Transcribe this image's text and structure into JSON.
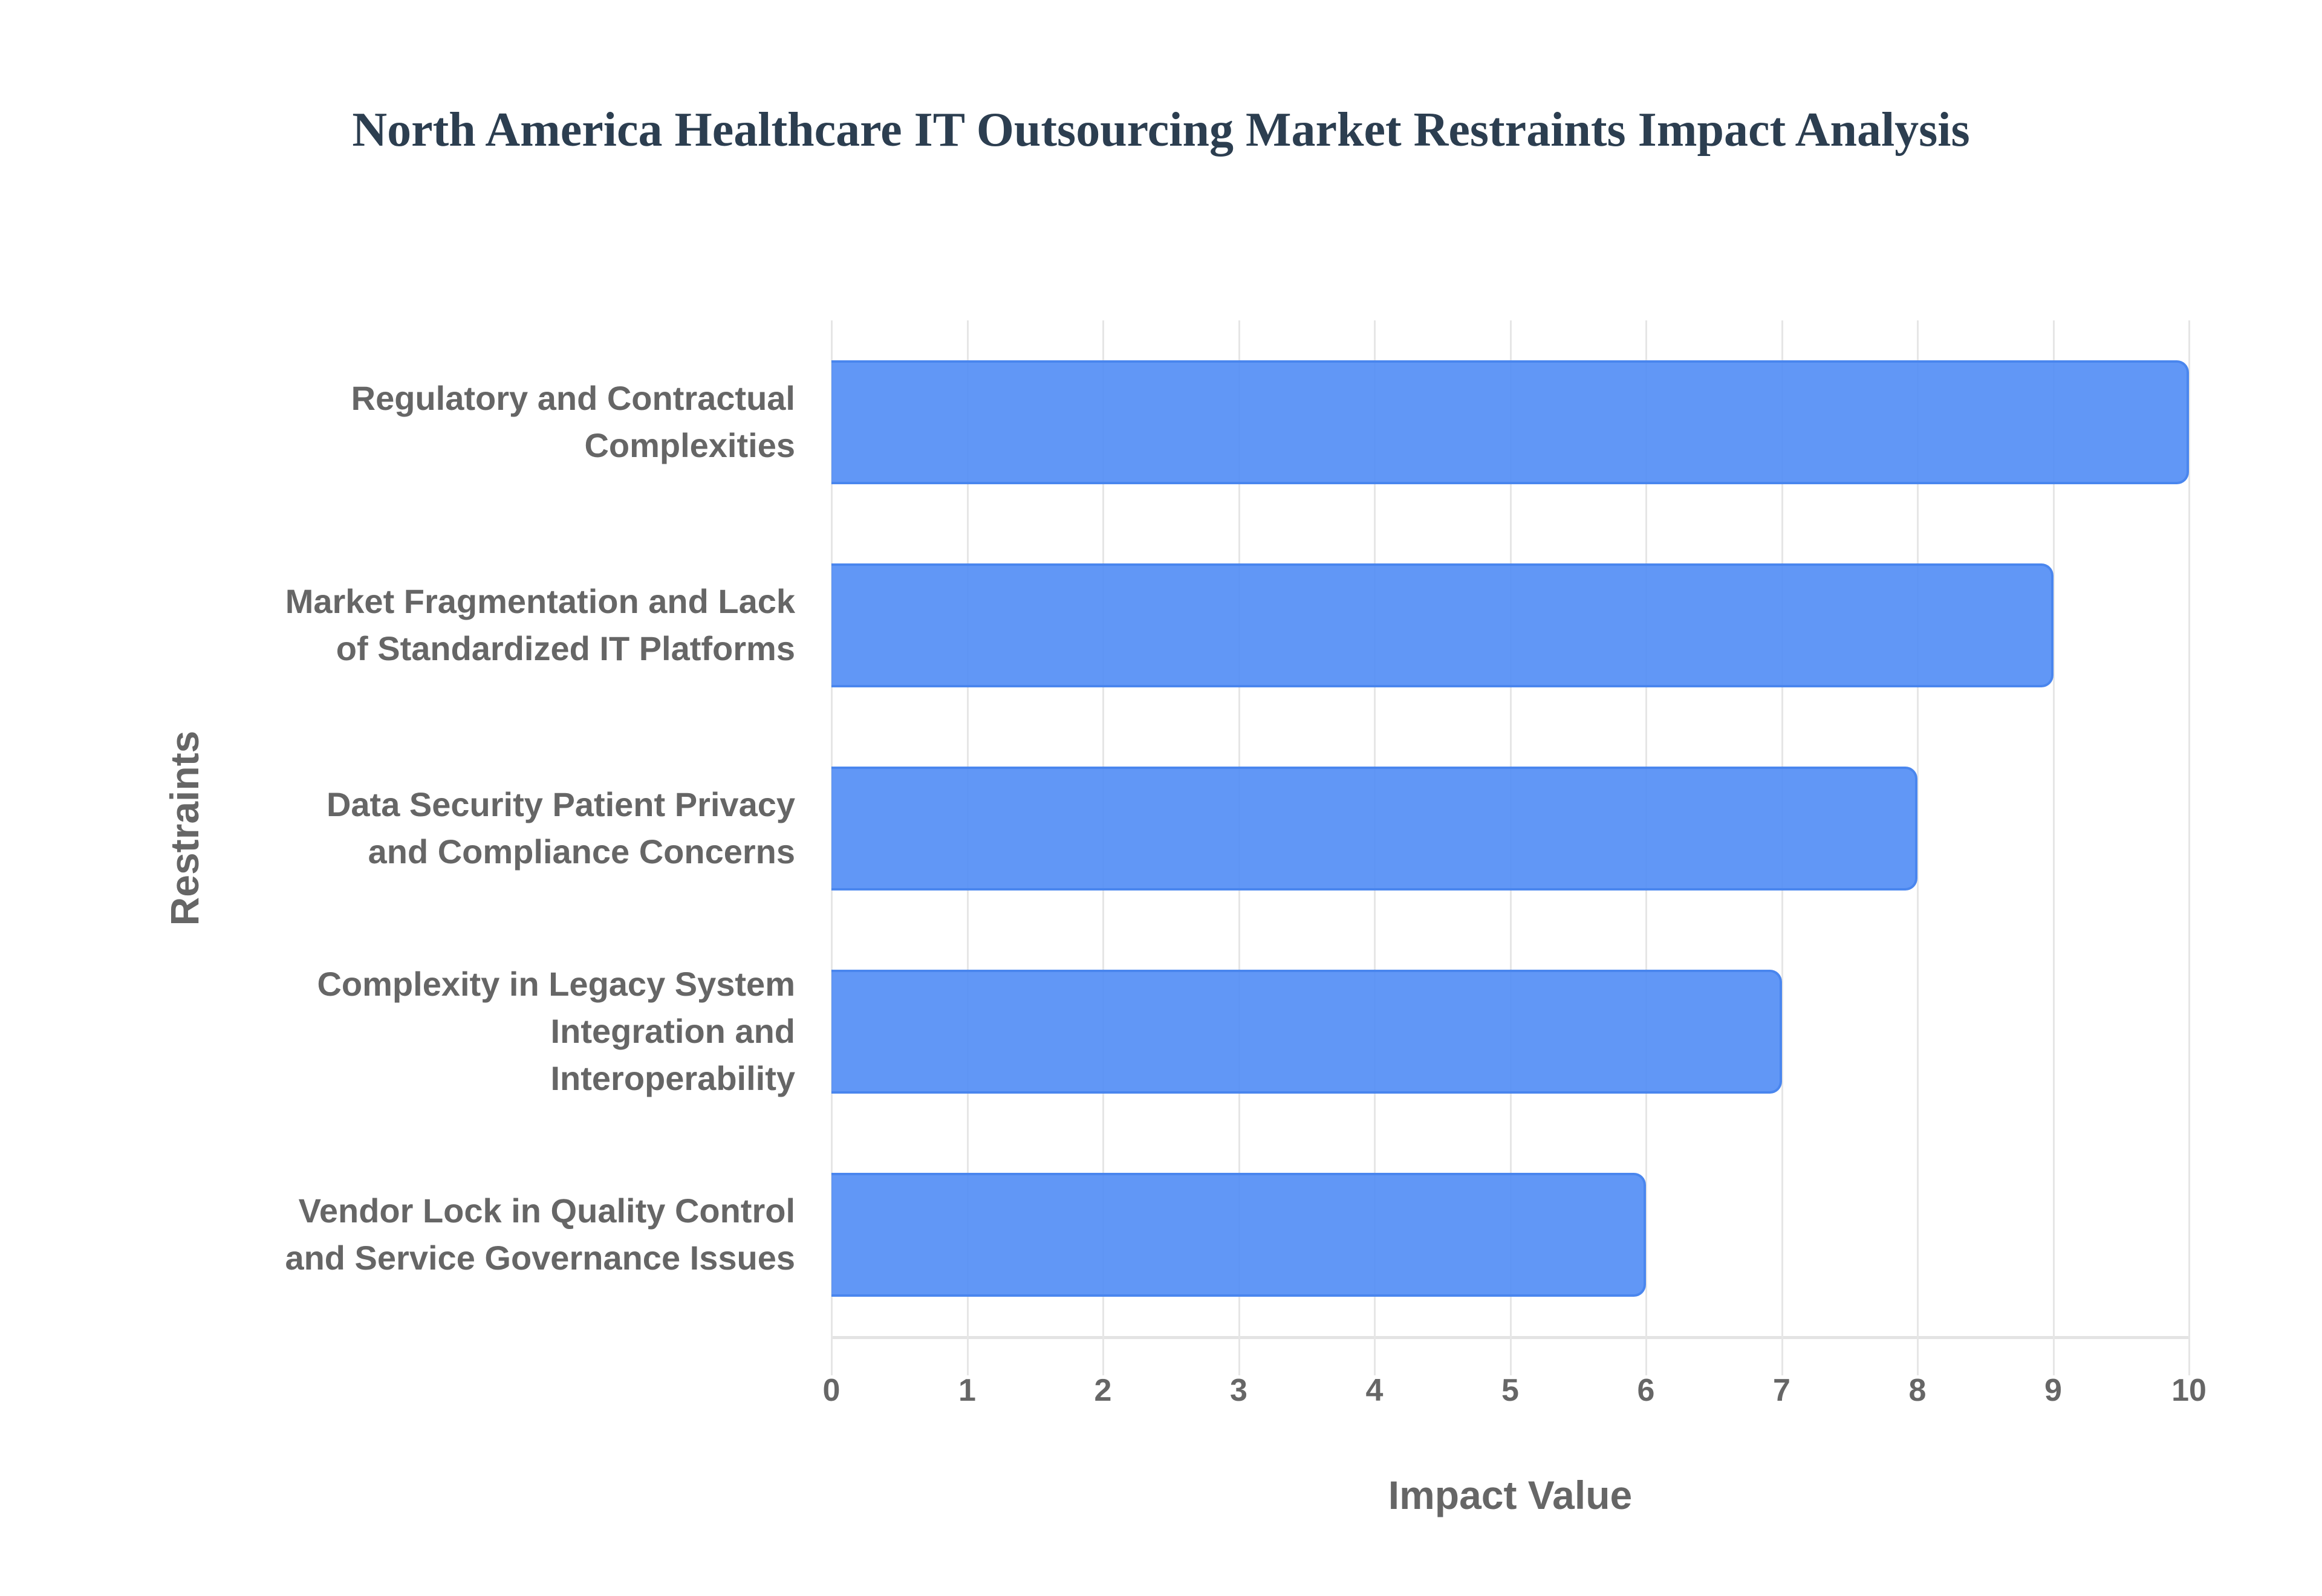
{
  "chart_data": {
    "type": "bar",
    "orientation": "horizontal",
    "title": "North America Healthcare IT Outsourcing Market Restraints Impact Analysis",
    "xlabel": "Impact Value",
    "ylabel": "Restraints",
    "categories": [
      "Regulatory and Contractual Complexities",
      "Market Fragmentation and Lack of Standardized IT Platforms",
      "Data Security Patient Privacy and Compliance Concerns",
      "Complexity in Legacy System Integration and Interoperability",
      "Vendor Lock in Quality Control and Service Governance Issues"
    ],
    "category_lines": [
      [
        "Regulatory and Contractual",
        "Complexities"
      ],
      [
        "Market Fragmentation and Lack",
        "of Standardized IT Platforms"
      ],
      [
        "Data Security Patient Privacy",
        "and Compliance Concerns"
      ],
      [
        "Complexity in Legacy System",
        "Integration and",
        "Interoperability"
      ],
      [
        "Vendor Lock in Quality Control",
        "and Service Governance Issues"
      ]
    ],
    "values": [
      10,
      9,
      8,
      7,
      6
    ],
    "xlim": [
      0,
      10
    ],
    "xticks": [
      "0",
      "1",
      "2",
      "3",
      "4",
      "5",
      "6",
      "7",
      "8",
      "9",
      "10"
    ],
    "grid": true,
    "legend": "none",
    "bar_color": "#5b95f5",
    "bar_border_color": "#4a86ee"
  }
}
